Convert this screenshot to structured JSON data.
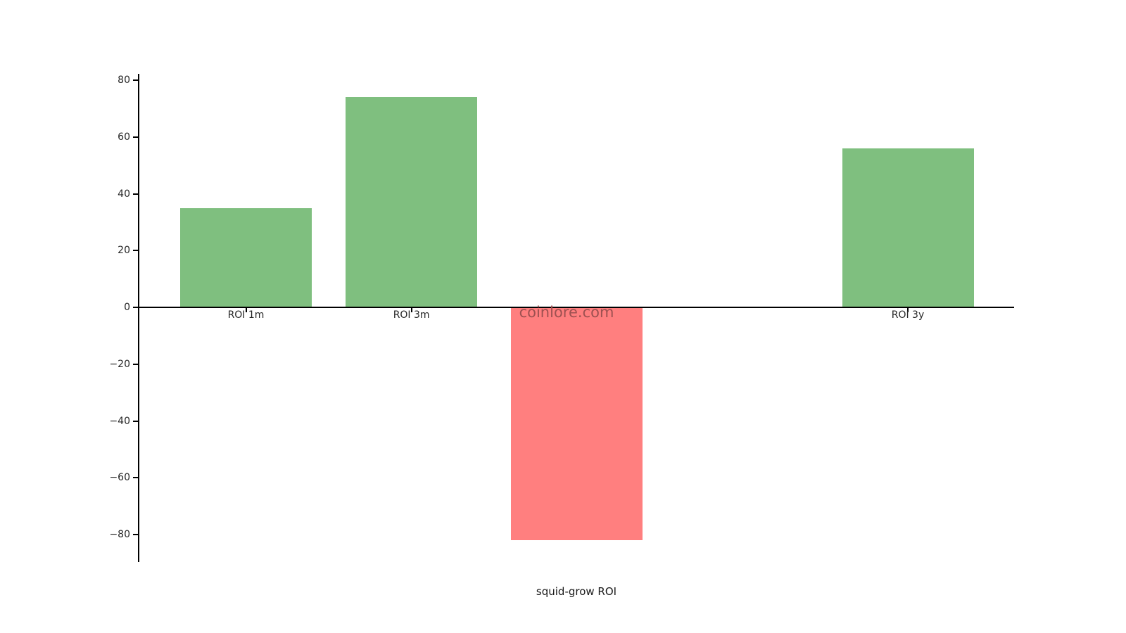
{
  "page": {
    "background": "#ffffff"
  },
  "watermark": {
    "text": "coinlore.com",
    "color": "#9e5151"
  },
  "chart_data": {
    "type": "bar",
    "title": "",
    "xlabel": "squid-grow ROI",
    "ylabel": "",
    "categories": [
      "ROI 1m",
      "ROI 3m",
      "",
      "",
      "ROI 3y"
    ],
    "values": [
      35,
      74,
      -82,
      0,
      56
    ],
    "bar_colors": [
      "#7fbf7f",
      "#7fbf7f",
      "#ff7f7f",
      "#7fbf7f",
      "#7fbf7f"
    ],
    "x_tick_visible": [
      true,
      true,
      true,
      false,
      true
    ],
    "y_ticks": [
      80,
      60,
      40,
      20,
      0,
      -20,
      -40,
      -60,
      -80
    ],
    "y_tick_labels": [
      "80",
      "60",
      "40",
      "20",
      "0",
      "−20",
      "−40",
      "−60",
      "−80"
    ],
    "ylim": [
      -89.8,
      81.8
    ],
    "grid": false,
    "legend": null,
    "axis_color": "#000000",
    "tick_label_color": "#262626"
  }
}
